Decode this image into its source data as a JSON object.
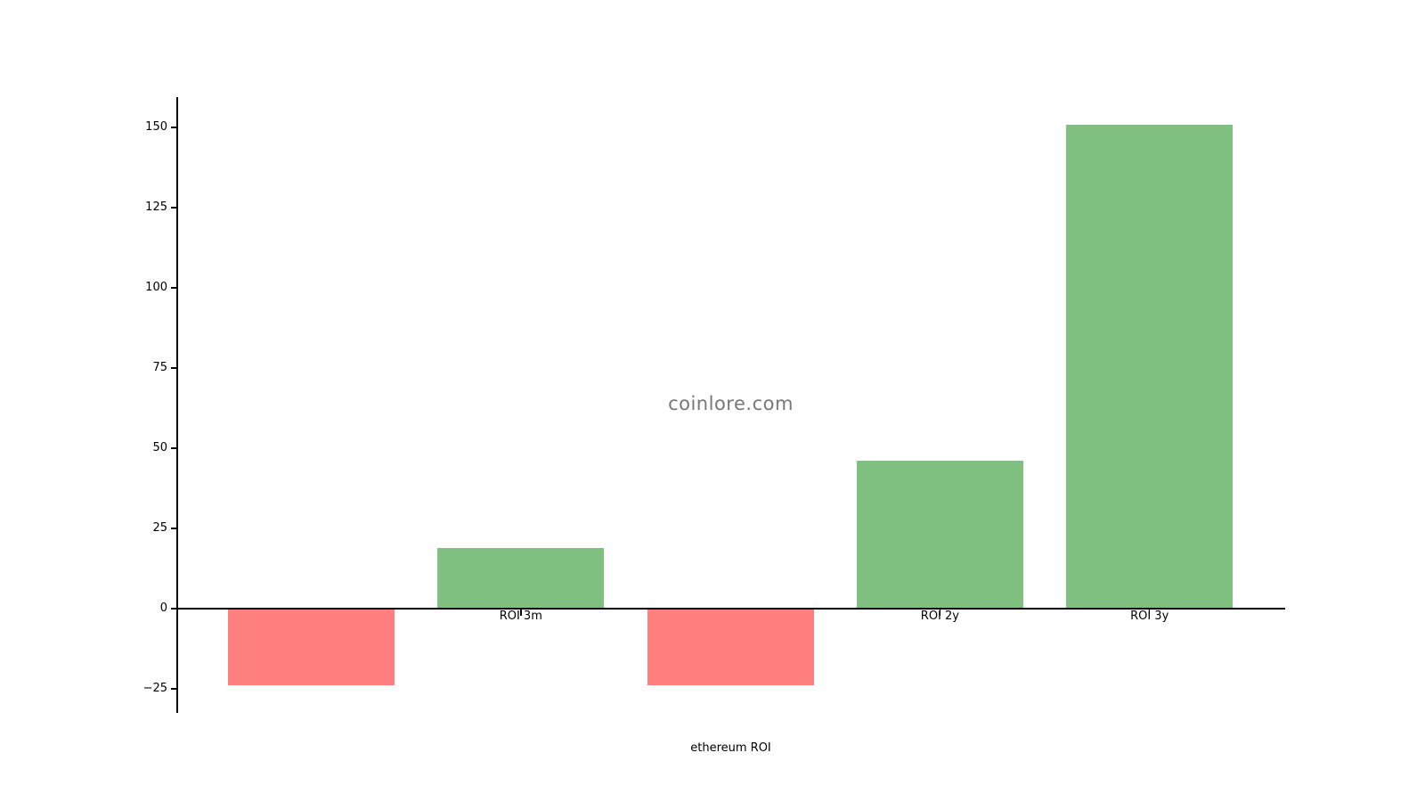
{
  "watermark": "coinlore.com",
  "chart_data": {
    "type": "bar",
    "title": "",
    "xlabel": "ethereum ROI",
    "ylabel": "",
    "categories": [
      "",
      "ROI 3m",
      "",
      "ROI 2y",
      "ROI 3y"
    ],
    "values": [
      -24,
      19,
      -24,
      46,
      151
    ],
    "yticks": [
      {
        "label": "150",
        "value": 150
      },
      {
        "label": "125",
        "value": 125
      },
      {
        "label": "100",
        "value": 100
      },
      {
        "label": "75",
        "value": 75
      },
      {
        "label": "50",
        "value": 50
      },
      {
        "label": "25",
        "value": 25
      },
      {
        "label": "0",
        "value": 0
      },
      {
        "label": "−25",
        "value": -25
      }
    ],
    "ylim": [
      -32.5,
      159.5
    ],
    "grid": false,
    "legend": false,
    "colors": {
      "positive": "#7fbf7f",
      "negative": "#ff7f7f",
      "axis": "#000000",
      "watermark": "#777777"
    }
  }
}
